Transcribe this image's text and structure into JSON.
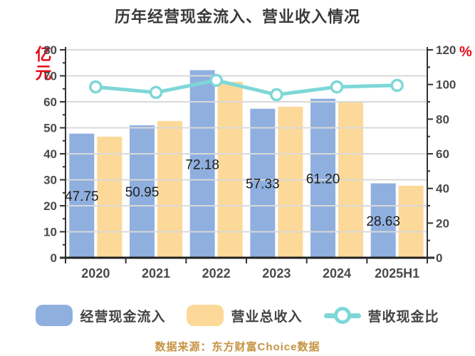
{
  "title": "历年经营现金流入、营业收入情况",
  "footer_note": "数据来源：东方财富Choice数据",
  "axes": {
    "left_unit": "亿元",
    "right_unit": "%",
    "unit_color": "#e60c18",
    "left_tick_labels": [
      "0",
      "10",
      "20",
      "30",
      "40",
      "50",
      "60",
      "70",
      "80"
    ],
    "right_tick_labels": [
      "0",
      "20",
      "40",
      "60",
      "80",
      "100",
      "120"
    ]
  },
  "chart_data": {
    "type": "bar+line",
    "title": "历年经营现金流入、营业收入情况",
    "categories": [
      "2020",
      "2021",
      "2022",
      "2023",
      "2024",
      "2025H1"
    ],
    "ylim_left": [
      0,
      80
    ],
    "ylim_right": [
      0,
      120
    ],
    "left_tick_step": 10,
    "right_tick_step": 20,
    "grid": true,
    "legend_position": "bottom",
    "series": [
      {
        "name": "经营现金流入",
        "type": "bar",
        "axis": "left",
        "color": "#8fafdf",
        "values": [
          47.75,
          50.95,
          72.18,
          57.33,
          61.2,
          28.63
        ],
        "data_labels": [
          "47.75",
          "50.95",
          "72.18",
          "57.33",
          "61.20",
          "28.63"
        ]
      },
      {
        "name": "营业总收入",
        "type": "bar",
        "axis": "left",
        "color": "#fcd998",
        "values": [
          46.6,
          52.6,
          67.7,
          58.1,
          60.3,
          27.7
        ]
      },
      {
        "name": "营收现金比",
        "type": "line",
        "axis": "right",
        "color": "#7ed7d7",
        "marker": "white-circle",
        "values": [
          98.6,
          95.4,
          102.4,
          94.1,
          98.6,
          99.5
        ]
      }
    ]
  },
  "legend": [
    {
      "label": "经营现金流入",
      "swatch": "bar",
      "color": "#8fafdf"
    },
    {
      "label": "营业总收入",
      "swatch": "bar",
      "color": "#fcd998"
    },
    {
      "label": "营收现金比",
      "swatch": "line",
      "color": "#7ed7d7"
    }
  ],
  "colors": {
    "grid": "#d9d9d9",
    "axis": "#333333",
    "baseline": "#1f1f1f",
    "tick_text": "#4a4a4a",
    "bar_label_text": "#1f1f1f",
    "title_text": "#3a3a3a",
    "footer_text": "#c59340"
  }
}
